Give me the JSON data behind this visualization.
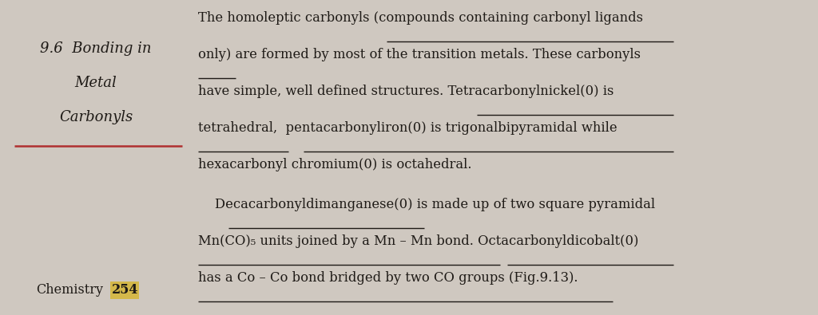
{
  "bg_color": "#cfc8c0",
  "left_heading_line1": "9.6  Bonding in",
  "left_heading_line2": "Metal",
  "left_heading_line3": "Carbonyls",
  "divider_color": "#b03030",
  "footer_text": "Chemistry",
  "footer_number": "254",
  "footer_highlight": "#d4b84a",
  "para1_lines": [
    "The homoleptic carbonyls (compounds containing carbonyl ligands",
    "only) are formed by most of the transition metals. These carbonyls",
    "have simple, well defined structures. Tetracarbonylnickel(0) is",
    "tetrahedral,  pentacarbonyliron(0) is trigonalbipyramidal while",
    "hexacarbonyl chromium(0) is octahedral."
  ],
  "para2_lines": [
    "    Decacarbonyldimanganese(0) is made up of two square pyramidal",
    "Mn(CO)₅ units joined by a Mn – Mn bond. Octacarbonyldicobalt(0)",
    "has a Co – Co bond bridged by two CO groups (Fig.9.13)."
  ],
  "text_color": "#1e1a16",
  "ul_color": "#1e1a16",
  "font_size_heading": 13,
  "font_size_main": 11.8,
  "font_size_footer": 11.5
}
